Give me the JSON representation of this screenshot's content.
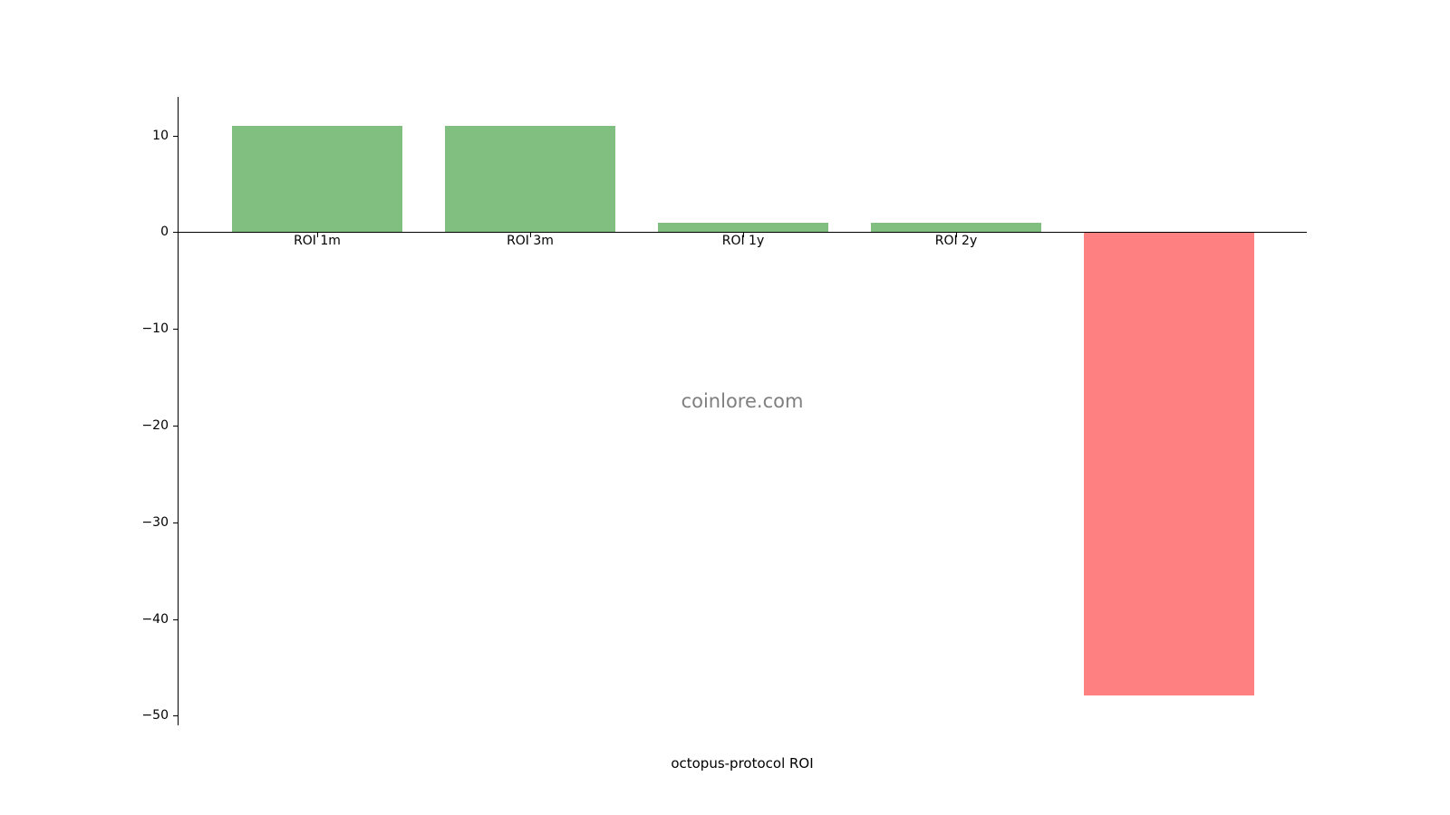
{
  "watermark": {
    "text": "coinlore.com",
    "color": "#7f7f7f"
  },
  "chart_data": {
    "type": "bar",
    "title": "",
    "xlabel": "octopus-protocol ROI",
    "ylabel": "",
    "categories": [
      "ROI 1m",
      "ROI 3m",
      "ROI 1y",
      "ROI 2y",
      ""
    ],
    "values": [
      11,
      11,
      1,
      1,
      -48
    ],
    "bar_colors": [
      "#80bf80",
      "#80bf80",
      "#80bf80",
      "#80bf80",
      "#ff8080"
    ],
    "positive_color": "#80bf80",
    "negative_color": "#ff8080",
    "axis_color": "#000000",
    "y_ticks": [
      10,
      0,
      -10,
      -20,
      -30,
      -40,
      -50
    ],
    "y_tick_labels": [
      "10",
      "0",
      "−10",
      "−20",
      "−30",
      "−40",
      "−50"
    ],
    "ylim": [
      -51,
      14
    ],
    "grid": false,
    "legend_position": "none"
  }
}
